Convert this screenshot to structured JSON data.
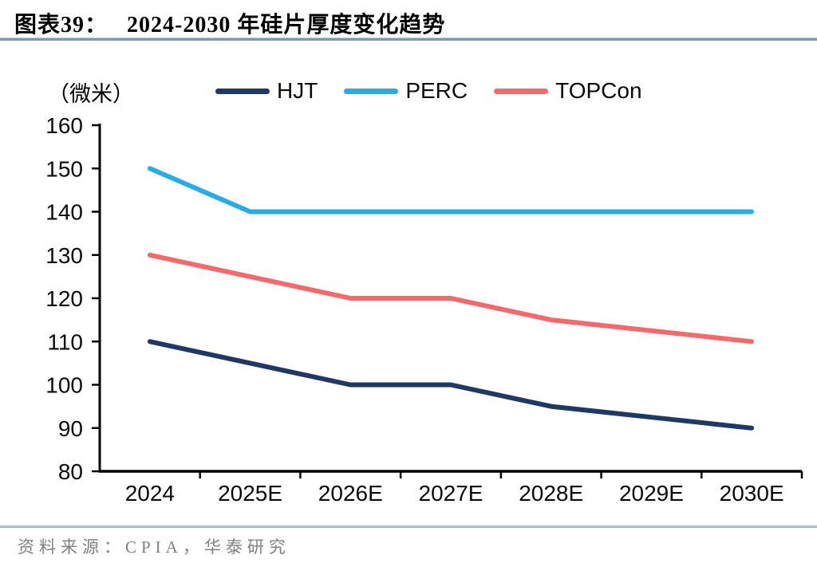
{
  "header": {
    "label": "图表39：",
    "title": "2024-2030 年硅片厚度变化趋势"
  },
  "chart_data": {
    "type": "line",
    "title": "2024-2030 年硅片厚度变化趋势",
    "unit_label": "（微米）",
    "categories": [
      "2024",
      "2025E",
      "2026E",
      "2027E",
      "2028E",
      "2029E",
      "2030E"
    ],
    "series": [
      {
        "name": "HJT",
        "color": "#1f3864",
        "values": [
          110,
          105,
          100,
          100,
          95,
          92.5,
          90
        ]
      },
      {
        "name": "PERC",
        "color": "#29ace3",
        "values": [
          150,
          140,
          140,
          140,
          140,
          140,
          140
        ]
      },
      {
        "name": "TOPCon",
        "color": "#f4696b",
        "values": [
          130,
          125,
          120,
          120,
          115,
          112.5,
          110
        ]
      }
    ],
    "ylim": [
      80,
      160
    ],
    "ytick_step": 10,
    "grid": false,
    "legend_position": "top"
  },
  "footer": {
    "source": "资料来源：CPIA，华泰研究"
  },
  "colors": {
    "axis": "#000000",
    "tick_text": "#0b0b0b",
    "title_underline": "#7c99b5",
    "footer_divider": "#a3bdd3",
    "source_text": "#808080"
  }
}
